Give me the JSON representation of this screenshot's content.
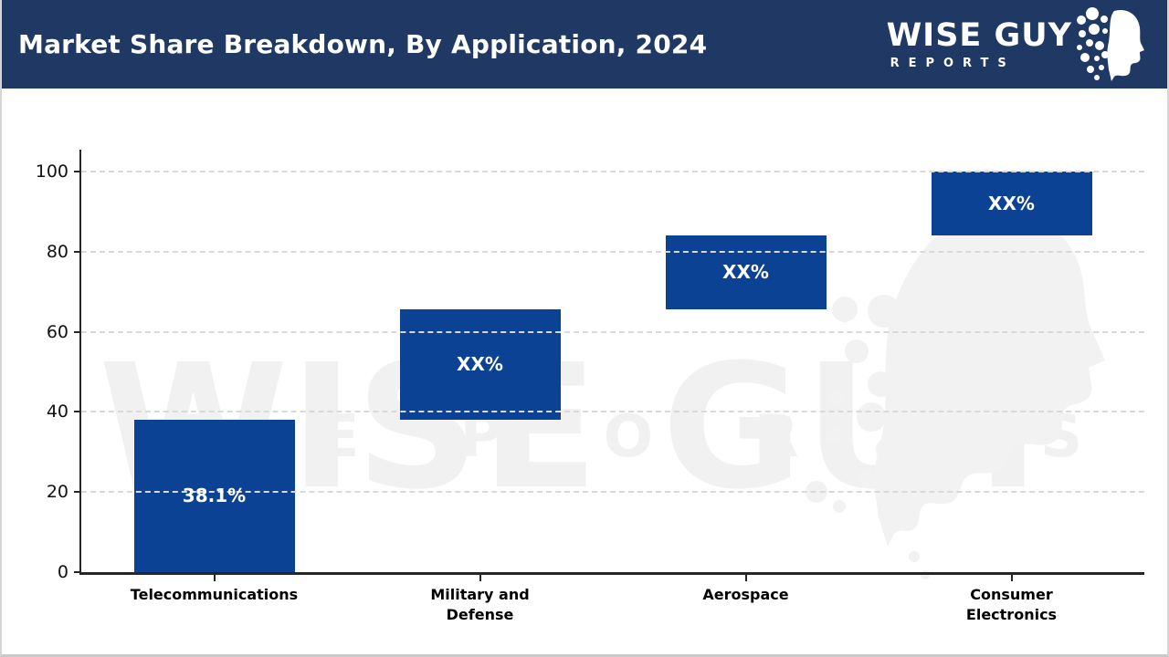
{
  "header": {
    "title": "Market Share Breakdown, By Application, 2024",
    "logo": {
      "line1": "WISE GUY",
      "line2": "REPORTS"
    }
  },
  "watermark": {
    "line1": "WISE GUY",
    "line2": "R E P O R T S"
  },
  "colors": {
    "header_bg": "#1f3864",
    "bar": "#0b4294",
    "axis": "#262626",
    "gridline": "#d9d9d9",
    "bar_label": "#ffffff",
    "watermark": "#f1f1f1"
  },
  "chart_data": {
    "type": "bar",
    "subtype": "waterfall",
    "title": "Market Share Breakdown, By Application, 2024",
    "categories": [
      "Telecommunications",
      "Military and\nDefense",
      "Aerospace",
      "Consumer\nElectronics"
    ],
    "segments": [
      {
        "category": "Telecommunications",
        "start": 0,
        "end": 38.1,
        "label": "38.1%"
      },
      {
        "category": "Military and Defense",
        "start": 38.1,
        "end": 65.7,
        "label": "XX%"
      },
      {
        "category": "Aerospace",
        "start": 65.7,
        "end": 84.0,
        "label": "XX%"
      },
      {
        "category": "Consumer Electronics",
        "start": 84.0,
        "end": 100.0,
        "label": "XX%"
      }
    ],
    "yticks": [
      0,
      20,
      40,
      60,
      80,
      100
    ],
    "ylim": [
      0,
      100
    ],
    "grid": "horizontal-dashed",
    "legend": "none"
  }
}
